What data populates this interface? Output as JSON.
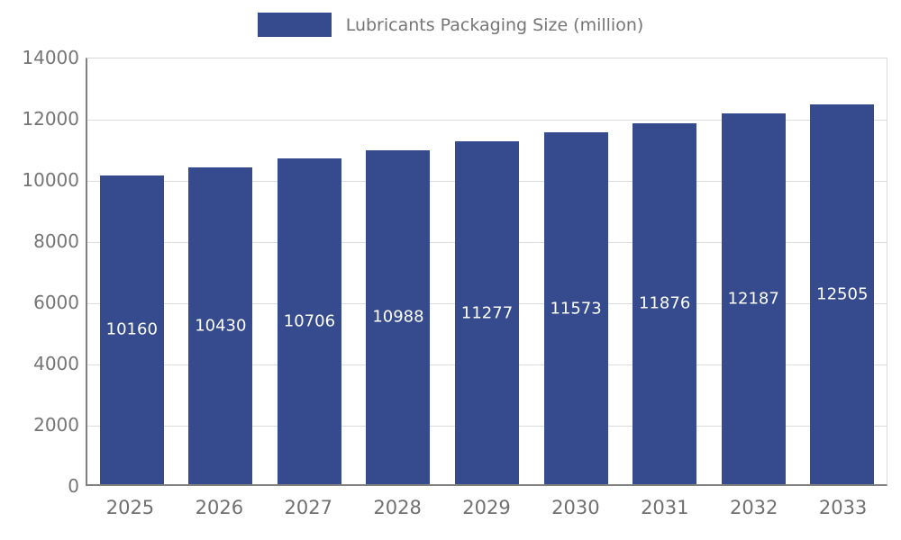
{
  "legend": {
    "label": "Lubricants Packaging Size (million)"
  },
  "colors": {
    "bar": "#364B8D",
    "axis_text": "#757575",
    "grid": "#dcdcdc",
    "value_label": "#ffffff"
  },
  "chart_data": {
    "type": "bar",
    "title": "Lubricants Packaging Size (million)",
    "categories": [
      "2025",
      "2026",
      "2027",
      "2028",
      "2029",
      "2030",
      "2031",
      "2032",
      "2033"
    ],
    "values": [
      10160,
      10430,
      10706,
      10988,
      11277,
      11573,
      11876,
      12187,
      12505
    ],
    "xlabel": "",
    "ylabel": "",
    "ylim": [
      0,
      14000
    ],
    "yticks": [
      0,
      2000,
      4000,
      6000,
      8000,
      10000,
      12000,
      14000
    ],
    "grid": true,
    "legend_position": "top-center",
    "value_labels": "inside-middle",
    "value_label_color": "#ffffff"
  }
}
